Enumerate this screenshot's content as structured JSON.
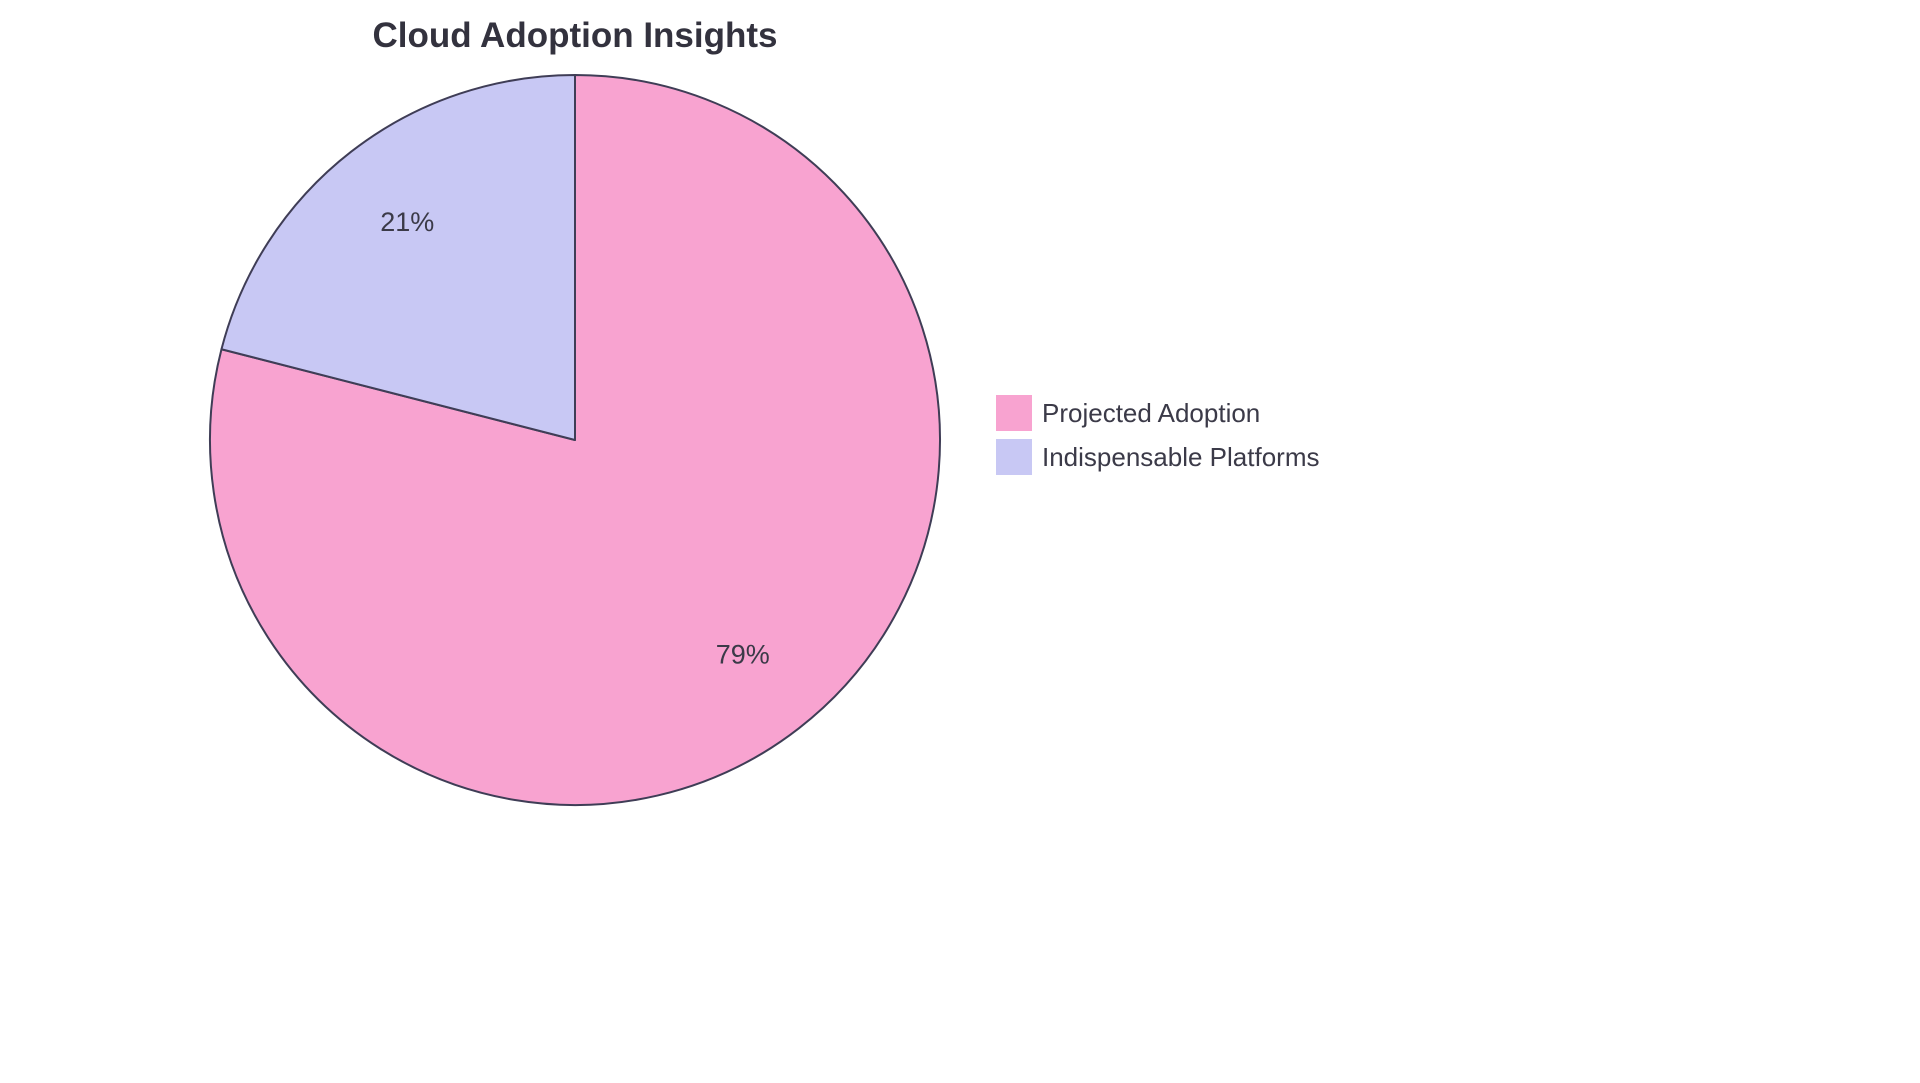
{
  "chart_data": {
    "type": "pie",
    "title": "Cloud Adoption Insights",
    "legend_position": "right",
    "start_angle_deg": 0,
    "direction": "clockwise",
    "slices": [
      {
        "label": "Projected Adoption",
        "value": 79,
        "pct_label": "79%",
        "color": "#F8A3D0"
      },
      {
        "label": "Indispensable Platforms",
        "value": 21,
        "pct_label": "21%",
        "color": "#C8C8F4"
      }
    ],
    "stroke_color": "#3f3d56",
    "stroke_width": 2,
    "label_color": "#3b3a48",
    "title_color": "#33323e",
    "background_color": "#ffffff"
  }
}
